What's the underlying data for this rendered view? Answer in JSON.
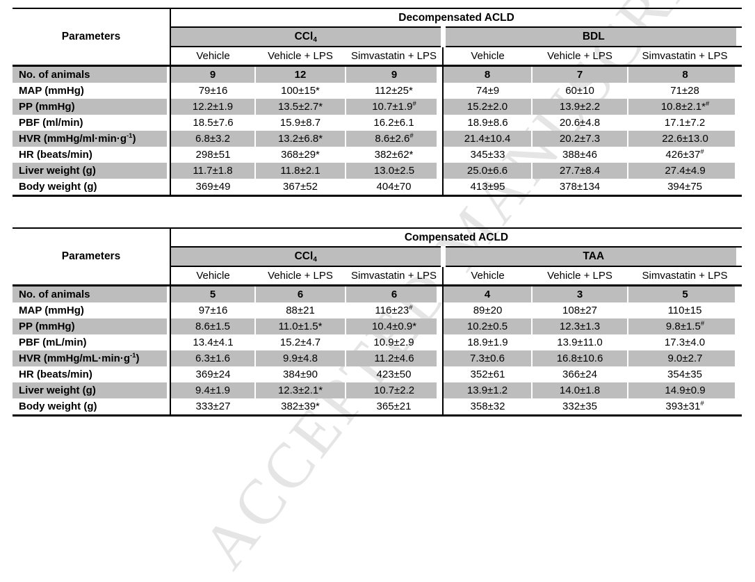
{
  "watermark": "ACCEPTED MANUSCRIPT",
  "gray_color": "#bdbdbd",
  "tables": [
    {
      "condition": "Decompensated ACLD",
      "params_header": "Parameters",
      "groups": [
        {
          "label": "CCl~4~",
          "columns": [
            "Vehicle",
            "Vehicle + LPS",
            "Simvastatin + LPS"
          ]
        },
        {
          "label": "BDL",
          "columns": [
            "Vehicle",
            "Vehicle + LPS",
            "Simvastatin + LPS"
          ]
        }
      ],
      "rows": [
        {
          "label": "No. of animals",
          "bold": true,
          "values": [
            "9",
            "12",
            "9",
            "8",
            "7",
            "8"
          ]
        },
        {
          "label": "MAP (mmHg)",
          "values": [
            "79±16",
            "100±15*",
            "112±25*",
            "74±9",
            "60±10",
            "71±28"
          ]
        },
        {
          "label": "PP (mmHg)",
          "values": [
            "12.2±1.9",
            "13.5±2.7*",
            "10.7±1.9^#^",
            "15.2±2.0",
            "13.9±2.2",
            "10.8±2.1*^#^"
          ]
        },
        {
          "label": "PBF (ml/min)",
          "values": [
            "18.5±7.6",
            "15.9±8.7",
            "16.2±6.1",
            "18.9±8.6",
            "20.6±4.8",
            "17.1±7.2"
          ]
        },
        {
          "label": "HVR (mmHg/ml·min·g^-1^)",
          "values": [
            "6.8±3.2",
            "13.2±6.8*",
            "8.6±2.6^#^",
            "21.4±10.4",
            "20.2±7.3",
            "22.6±13.0"
          ]
        },
        {
          "label": "HR (beats/min)",
          "values": [
            "298±51",
            "368±29*",
            "382±62*",
            "345±33",
            "388±46",
            "426±37^#^"
          ]
        },
        {
          "label": "Liver weight (g)",
          "values": [
            "11.7±1.8",
            "11.8±2.1",
            "13.0±2.5",
            "25.0±6.6",
            "27.7±8.4",
            "27.4±4.9"
          ]
        },
        {
          "label": "Body weight (g)",
          "values": [
            "369±49",
            "367±52",
            "404±70",
            "413±95",
            "378±134",
            "394±75"
          ]
        }
      ]
    },
    {
      "condition": "Compensated ACLD",
      "params_header": "Parameters",
      "groups": [
        {
          "label": "CCl~4~",
          "columns": [
            "Vehicle",
            "Vehicle + LPS",
            "Simvastatin + LPS"
          ]
        },
        {
          "label": "TAA",
          "columns": [
            "Vehicle",
            "Vehicle + LPS",
            "Simvastatin + LPS"
          ]
        }
      ],
      "rows": [
        {
          "label": "No. of animals",
          "bold": true,
          "values": [
            "5",
            "6",
            "6",
            "4",
            "3",
            "5"
          ]
        },
        {
          "label": "MAP (mmHg)",
          "values": [
            "97±16",
            "88±21",
            "116±23^#^",
            "89±20",
            "108±27",
            "110±15"
          ]
        },
        {
          "label": "PP (mmHg)",
          "values": [
            "8.6±1.5",
            "11.0±1.5*",
            "10.4±0.9*",
            "10.2±0.5",
            "12.3±1.3",
            "9.8±1.5^#^"
          ]
        },
        {
          "label": "PBF (mL/min)",
          "values": [
            "13.4±4.1",
            "15.2±4.7",
            "10.9±2.9",
            "18.9±1.9",
            "13.9±11.0",
            "17.3±4.0"
          ]
        },
        {
          "label": "HVR (mmHg/mL·min·g^-1^)",
          "values": [
            "6.3±1.6",
            "9.9±4.8",
            "11.2±4.6",
            "7.3±0.6",
            "16.8±10.6",
            "9.0±2.7"
          ]
        },
        {
          "label": "HR (beats/min)",
          "values": [
            "369±24",
            "384±90",
            "423±50",
            "352±61",
            "366±24",
            "354±35"
          ]
        },
        {
          "label": "Liver weight (g)",
          "values": [
            "9.4±1.9",
            "12.3±2.1*",
            "10.7±2.2",
            "13.9±1.2",
            "14.0±1.8",
            "14.9±0.9"
          ]
        },
        {
          "label": "Body weight (g)",
          "values": [
            "333±27",
            "382±39*",
            "365±21",
            "358±32",
            "332±35",
            "393±31^#^"
          ]
        }
      ]
    }
  ]
}
